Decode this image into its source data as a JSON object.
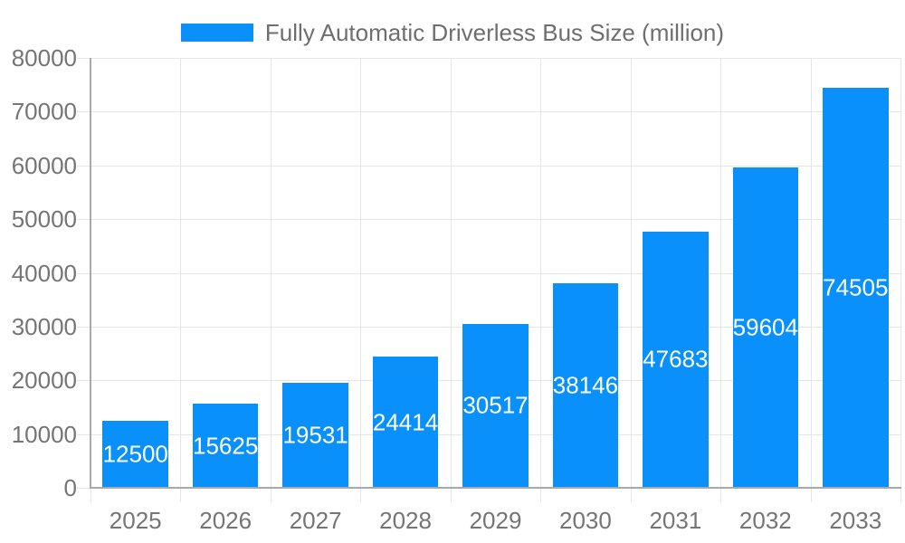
{
  "chart_data": {
    "type": "bar",
    "title": "Fully Automatic Driverless Bus Size (million)",
    "legend": {
      "position": "top",
      "label": "Fully Automatic Driverless Bus Size (million)"
    },
    "categories": [
      "2025",
      "2026",
      "2027",
      "2028",
      "2029",
      "2030",
      "2031",
      "2032",
      "2033"
    ],
    "series": [
      {
        "name": "Fully Automatic Driverless Bus Size (million)",
        "values": [
          12500,
          15625,
          19531,
          24414,
          30517,
          38146,
          47683,
          59604,
          74505
        ]
      }
    ],
    "bar_labels": [
      "12500",
      "15625",
      "19531",
      "24414",
      "30517",
      "38146",
      "47683",
      "59604",
      "74505"
    ],
    "xlabel": "",
    "ylabel": "",
    "ylim": [
      0,
      80000
    ],
    "ytick_step": 10000,
    "ytick_labels": [
      "0",
      "10000",
      "20000",
      "30000",
      "40000",
      "50000",
      "60000",
      "70000",
      "80000"
    ],
    "grid": "on",
    "colors": {
      "bar": "#0a90fa",
      "bar_value_label": "#ffffff",
      "grid_line": "#e6e6e6",
      "axis_line": "#a9a9a9",
      "axis_text": "#757575",
      "legend_text": "#6e6e6e",
      "background": "#ffffff"
    }
  }
}
